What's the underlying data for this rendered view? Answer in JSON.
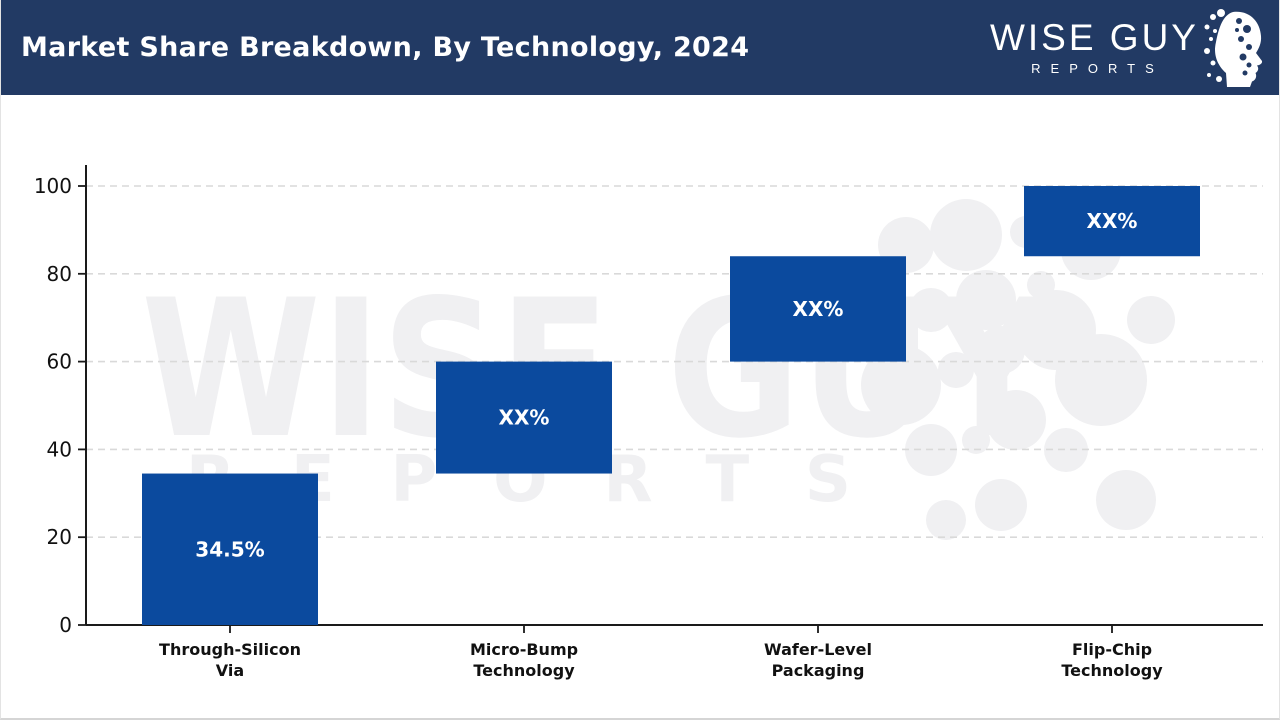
{
  "header": {
    "title": "Market Share Breakdown, By Technology, 2024",
    "logo": {
      "name": "WISE GUY",
      "subtitle": "REPORTS"
    }
  },
  "watermark": {
    "line1": "WISE GUY",
    "line2": "REPORTS"
  },
  "chart_data": {
    "type": "bar",
    "subtype": "waterfall-floating-bars",
    "title": "Market Share Breakdown, By Technology, 2024",
    "categories": [
      "Through-Silicon\nVia",
      "Micro-Bump\nTechnology",
      "Wafer-Level\nPackaging",
      "Flip-Chip\nTechnology"
    ],
    "segments": [
      [
        0,
        34.5
      ],
      [
        34.5,
        60
      ],
      [
        60,
        84
      ],
      [
        84,
        100
      ]
    ],
    "values": [
      34.5,
      25.5,
      24,
      16
    ],
    "labels": [
      "34.5%",
      "XX%",
      "XX%",
      "XX%"
    ],
    "yticks": [
      0,
      20,
      40,
      60,
      80,
      100
    ],
    "ylim": [
      0,
      104.8
    ],
    "xlabel": "",
    "ylabel": "",
    "grid": true,
    "legend": false,
    "bar_color": "#0b4a9e",
    "bar_label_color": "#ffffff",
    "gridline_color": "#d9d9d9",
    "axis_color": "#1a1a1a",
    "header_bg_color": "#223a64",
    "watermark_color": "#f0f0f2"
  }
}
